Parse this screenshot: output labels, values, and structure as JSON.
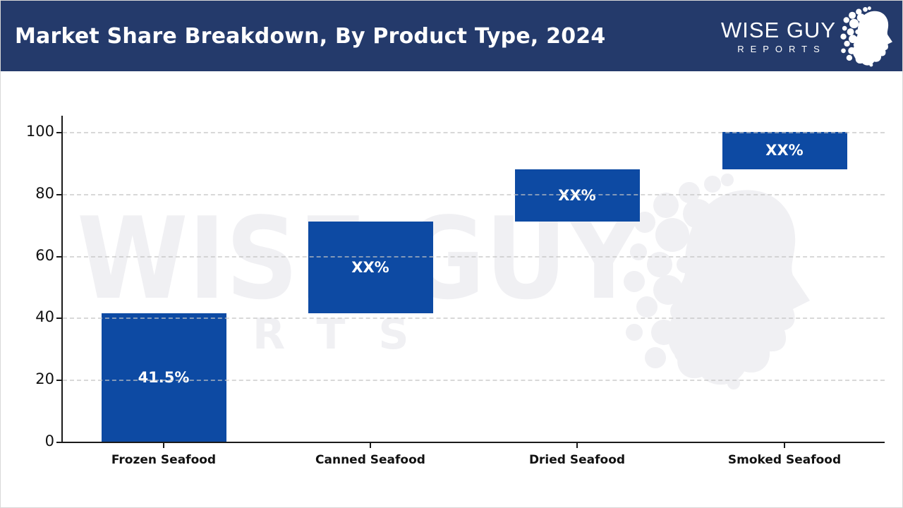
{
  "header": {
    "title": "Market Share Breakdown, By Product Type, 2024",
    "logo": {
      "line1": "WISE GUY",
      "line2": "REPORTS"
    }
  },
  "watermark": {
    "line1": "WISE GUY",
    "line2": "PORTS"
  },
  "colors": {
    "header_bg": "#243A6B",
    "bar": "#0D4AA3",
    "grid": "#d9d9d9",
    "axis": "#1a1a1a",
    "watermark": "#f0f0f3",
    "bar_label": "#ffffff"
  },
  "chart_data": {
    "type": "bar",
    "variant": "waterfall-floating-bars",
    "title": "Market Share Breakdown, By Product Type, 2024",
    "categories": [
      "Frozen Seafood",
      "Canned Seafood",
      "Dried Seafood",
      "Smoked Seafood"
    ],
    "bars": [
      {
        "category": "Frozen Seafood",
        "start": 0,
        "end": 41.5,
        "label": "41.5%"
      },
      {
        "category": "Canned Seafood",
        "start": 41.5,
        "end": 71,
        "label": "XX%"
      },
      {
        "category": "Dried Seafood",
        "start": 71,
        "end": 88,
        "label": "XX%"
      },
      {
        "category": "Smoked Seafood",
        "start": 88,
        "end": 100,
        "label": "XX%"
      }
    ],
    "yticks": [
      0,
      20,
      40,
      60,
      80,
      100
    ],
    "ylim": [
      0,
      105
    ],
    "xlabel": "",
    "ylabel": "",
    "grid": "horizontal-dashed",
    "legend": "none"
  }
}
